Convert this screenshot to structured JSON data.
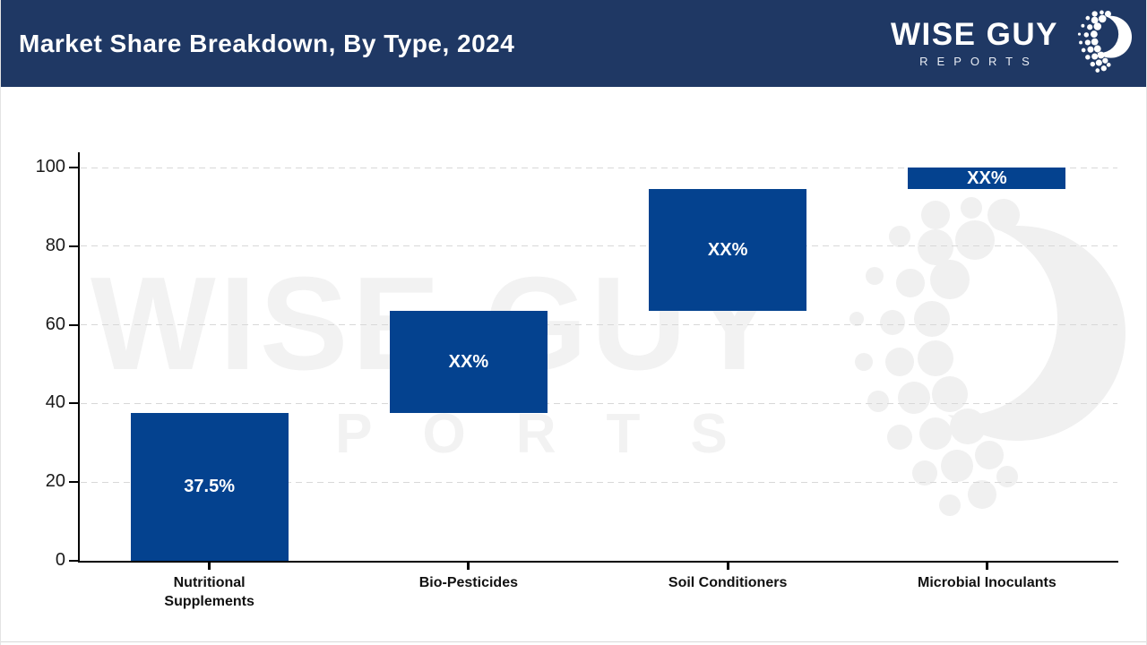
{
  "header": {
    "title": "Market Share Breakdown, By Type, 2024",
    "logo": {
      "wordmark": "WISE GUY",
      "subtext": "REPORTS"
    }
  },
  "watermark": {
    "line1": "WISE GUY",
    "line2": "REPORTS"
  },
  "colors": {
    "header_bg": "#1f3864",
    "bar": "#04428f",
    "grid": "#d8d8d8",
    "axis": "#000000",
    "bar_label": "#ffffff",
    "tick_label": "#1a1a1a",
    "watermark": "#f2f2f2"
  },
  "chart_data": {
    "type": "bar",
    "subtype": "floating-waterfall",
    "title": "Market Share Breakdown, By Type, 2024",
    "categories": [
      "Nutritional Supplements",
      "Bio-Pesticides",
      "Soil Conditioners",
      "Microbial Inoculants"
    ],
    "bars": [
      {
        "category": "Nutritional Supplements",
        "base": 0,
        "top": 37.5,
        "label": "37.5%"
      },
      {
        "category": "Bio-Pesticides",
        "base": 37.5,
        "top": 63.5,
        "label": "XX%"
      },
      {
        "category": "Soil Conditioners",
        "base": 63.5,
        "top": 94.5,
        "label": "XX%"
      },
      {
        "category": "Microbial Inoculants",
        "base": 94.5,
        "top": 100,
        "label": "XX%"
      }
    ],
    "y_ticks": [
      0,
      20,
      40,
      60,
      80,
      100
    ],
    "ylim": [
      0,
      100
    ],
    "xlabel": "",
    "ylabel": "",
    "grid": "horizontal-dashed",
    "legend": "none"
  }
}
